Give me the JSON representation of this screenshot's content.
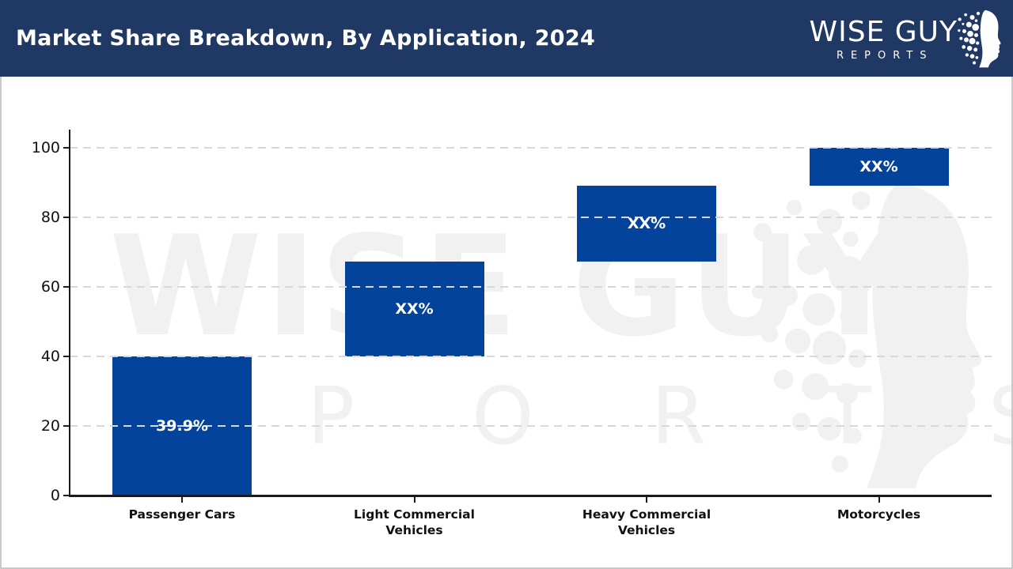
{
  "header": {
    "title": "Market Share Breakdown, By Application, 2024",
    "logo": {
      "name": "WISE GUY",
      "tagline": "REPORTS"
    }
  },
  "watermark": {
    "line1": "WISE GUY",
    "line2": "P O R T S"
  },
  "colors": {
    "header_bg": "#1f3864",
    "bar": "#04439c",
    "bar_label": "#ffffff",
    "gridline": "#d8d8d8",
    "axis": "#1a1a1a",
    "watermark": "#f1f1f1"
  },
  "chart_data": {
    "type": "bar",
    "subtype": "waterfall",
    "title": "Market Share Breakdown, By Application, 2024",
    "categories": [
      "Passenger Cars",
      "Light Commercial\nVehicles",
      "Heavy Commercial\nVehicles",
      "Motorcycles"
    ],
    "segments": [
      {
        "category": "Passenger Cars",
        "start": 0,
        "end": 39.9,
        "value": 39.9,
        "label": "39.9%"
      },
      {
        "category": "Light Commercial Vehicles",
        "start": 39.9,
        "end": 67.2,
        "value": 27.3,
        "label": "XX%"
      },
      {
        "category": "Heavy Commercial Vehicles",
        "start": 67.2,
        "end": 89.0,
        "value": 21.8,
        "label": "XX%"
      },
      {
        "category": "Motorcycles",
        "start": 89.0,
        "end": 100.0,
        "value": 11.0,
        "label": "XX%"
      }
    ],
    "xlabel": "",
    "ylabel": "",
    "yticks": [
      0,
      20,
      40,
      60,
      80,
      100
    ],
    "ylim": [
      0,
      105
    ],
    "grid": "horizontal-dashed",
    "legend": "none",
    "bar_color": "#04439c",
    "label_color": "#ffffff"
  }
}
